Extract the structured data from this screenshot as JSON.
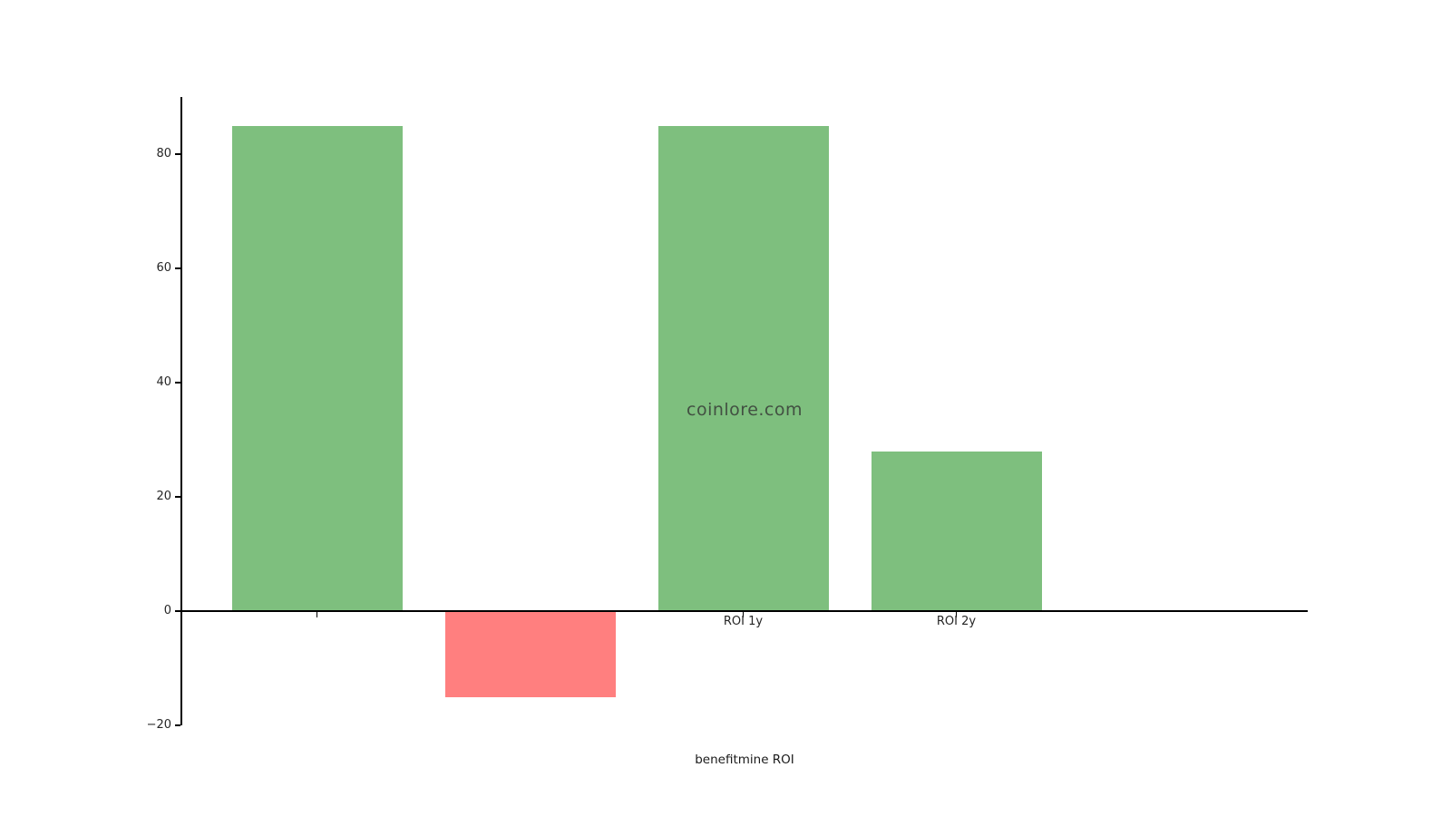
{
  "page": {
    "background": "#ffffff"
  },
  "chart_data": {
    "type": "bar",
    "title": "",
    "xlabel": "benefitmine ROI",
    "ylabel": "",
    "categories": [
      "",
      "",
      "ROI 1y",
      "ROI 2y"
    ],
    "values": [
      85,
      -15,
      85,
      28
    ],
    "bar_colors": [
      "#7ebf7e",
      "#ff7f7f",
      "#7ebf7e",
      "#7ebf7e"
    ],
    "yticks": [
      -20,
      0,
      20,
      40,
      60,
      80
    ],
    "ylim": [
      -20,
      90
    ],
    "grid": false,
    "legend_position": "none",
    "watermark": "coinlore.com",
    "colors": {
      "positive_bar": "#7ebf7e",
      "negative_bar": "#ff7f7f",
      "axis": "#000000",
      "tick_label": "#262626"
    }
  }
}
